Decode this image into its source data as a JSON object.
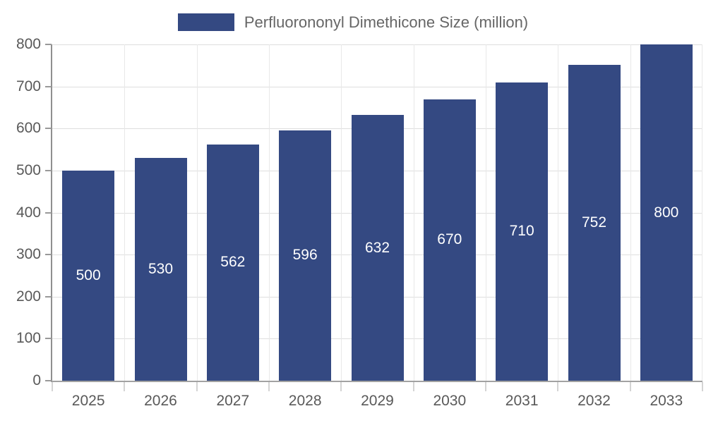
{
  "legend": {
    "label": "Perfluorononyl Dimethicone Size (million)",
    "swatch_color": "#344982"
  },
  "chart_data": {
    "type": "bar",
    "title": "",
    "xlabel": "",
    "ylabel": "",
    "categories": [
      "2025",
      "2026",
      "2027",
      "2028",
      "2029",
      "2030",
      "2031",
      "2032",
      "2033"
    ],
    "values": [
      500,
      530,
      562,
      596,
      632,
      670,
      710,
      752,
      800
    ],
    "series_name": "Perfluorononyl Dimethicone Size (million)",
    "ylim": [
      0,
      800
    ],
    "ytick_interval": 100,
    "y_ticks": [
      0,
      100,
      200,
      300,
      400,
      500,
      600,
      700,
      800
    ],
    "grid": true,
    "legend_position": "top",
    "bar_color": "#344982",
    "value_label_color": "#ffffff",
    "tick_label_color": "#595959",
    "value_labels_inside": "center"
  }
}
